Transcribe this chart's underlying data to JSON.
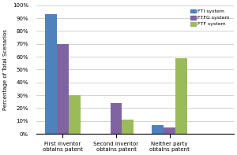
{
  "categories": [
    "First inventor\nobtains patent",
    "Second inventor\nobtains patent",
    "Neither party\nobtains patent"
  ],
  "series": {
    "FTI system": [
      93,
      0,
      7
    ],
    "FTFG system": [
      70,
      24,
      5
    ],
    "FTF system": [
      30,
      11,
      59
    ]
  },
  "colors": {
    "FTI system": "#4F81BD",
    "FTFG system": "#8064A2",
    "FTF system": "#9BBB59"
  },
  "ylabel": "Percentage of Total Scenarios",
  "ylim": [
    0,
    100
  ],
  "ytick_labels": [
    "0%",
    "10%",
    "20%",
    "30%",
    "40%",
    "50%",
    "60%",
    "70%",
    "80%",
    "90%",
    "100%"
  ],
  "bar_width": 0.22,
  "legend_order": [
    "FTI system",
    "FTFG system",
    "FTF system"
  ],
  "background_color": "#FFFFFF",
  "grid_color": "#C0C0C0"
}
